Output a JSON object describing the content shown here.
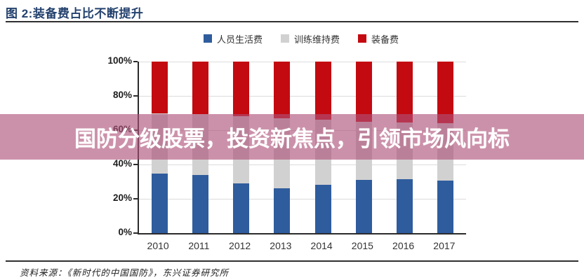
{
  "header": {
    "title": "图 2:装备费占比不断提升",
    "title_color": "#24426e"
  },
  "banner": {
    "text": "国防分级股票，投资新焦点，引领市场风向标",
    "bg_color": "rgba(175,80,120,0.63)",
    "text_color": "#ffffff"
  },
  "footer": {
    "source": "资料来源：《新时代的中国国防》，东兴证券研究所"
  },
  "chart_data": {
    "type": "bar",
    "stacked": true,
    "title": "图 2:装备费占比不断提升",
    "categories": [
      "2010",
      "2011",
      "2012",
      "2013",
      "2014",
      "2015",
      "2016",
      "2017"
    ],
    "series": [
      {
        "name": "人员生活费",
        "color": "#2f5c9d",
        "values": [
          34.5,
          34.0,
          29.0,
          26.0,
          28.0,
          31.0,
          31.5,
          30.5
        ]
      },
      {
        "name": "训练维持费",
        "color": "#d2d1d1",
        "values": [
          35.5,
          35.5,
          39.0,
          41.0,
          38.0,
          34.0,
          33.0,
          33.5
        ]
      },
      {
        "name": "装备费",
        "color": "#c30a10",
        "values": [
          30.0,
          30.5,
          32.0,
          33.0,
          34.0,
          35.0,
          35.5,
          36.0
        ]
      }
    ],
    "xlabel": "",
    "ylabel": "",
    "ylim": [
      0,
      100
    ],
    "yticks": [
      "0%",
      "20%",
      "40%",
      "60%",
      "80%",
      "100%"
    ],
    "ytick_values": [
      0,
      20,
      40,
      60,
      80,
      100
    ],
    "grid": true,
    "legend_position": "top",
    "axis_color": "#2b2b2b",
    "grid_color": "#dcdcdc"
  }
}
